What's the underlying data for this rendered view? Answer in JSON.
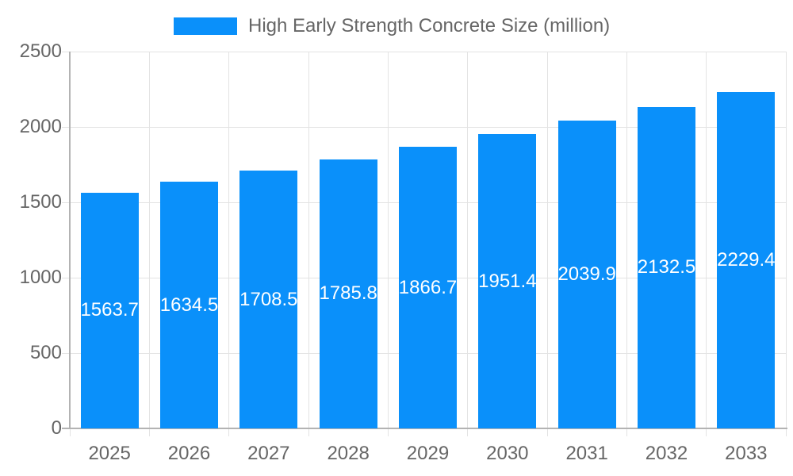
{
  "legend": {
    "label": "High Early Strength Concrete Size (million)"
  },
  "chart_data": {
    "type": "bar",
    "series_name": "High Early Strength Concrete Size (million)",
    "categories": [
      "2025",
      "2026",
      "2027",
      "2028",
      "2029",
      "2030",
      "2031",
      "2032",
      "2033"
    ],
    "values": [
      1563.7,
      1634.5,
      1708.5,
      1785.8,
      1866.7,
      1951.4,
      2039.9,
      2132.5,
      2229.4
    ],
    "xlabel": "",
    "ylabel": "",
    "ylim": [
      0,
      2500
    ],
    "yticks": [
      0,
      500,
      1000,
      1500,
      2000,
      2500
    ],
    "grid": true,
    "legend_position": "top",
    "bar_labels_visible": true,
    "colors": {
      "bar": "#0a90fa",
      "bar_label": "#ffffff",
      "axis_text": "#666666",
      "gridline": "#e3e3e3",
      "axis_line": "#b3b3b3",
      "background": "#ffffff"
    }
  }
}
